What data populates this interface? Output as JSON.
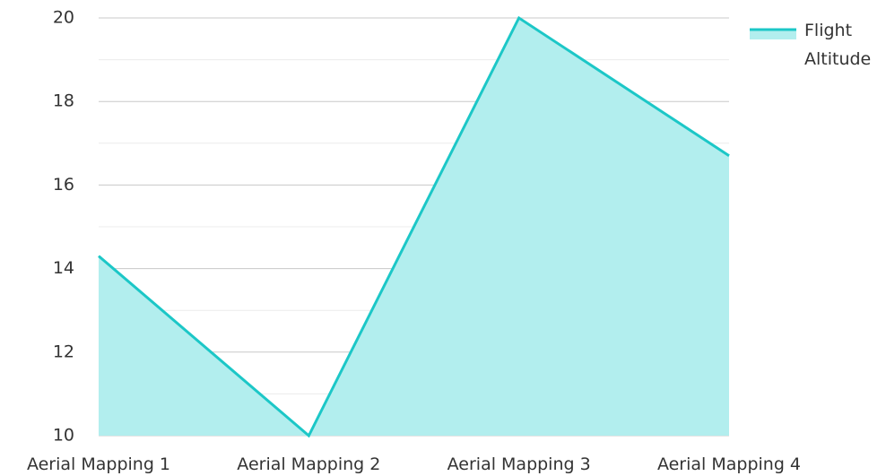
{
  "chart_data": {
    "type": "area",
    "categories": [
      "Aerial Mapping 1",
      "Aerial Mapping 2",
      "Aerial Mapping 3",
      "Aerial Mapping 4"
    ],
    "series": [
      {
        "name": "Flight Altitude",
        "values": [
          14.3,
          10,
          20,
          16.7
        ],
        "line_color": "#1cc7c7",
        "fill_color": "#b2eeee"
      }
    ],
    "ylim": [
      10,
      20
    ],
    "yticks": [
      10,
      12,
      14,
      16,
      18,
      20
    ],
    "title": "",
    "xlabel": "",
    "ylabel": "",
    "grid": true,
    "legend": {
      "position": "top-right",
      "label_lines": [
        "Flight",
        "Altitude"
      ]
    }
  }
}
